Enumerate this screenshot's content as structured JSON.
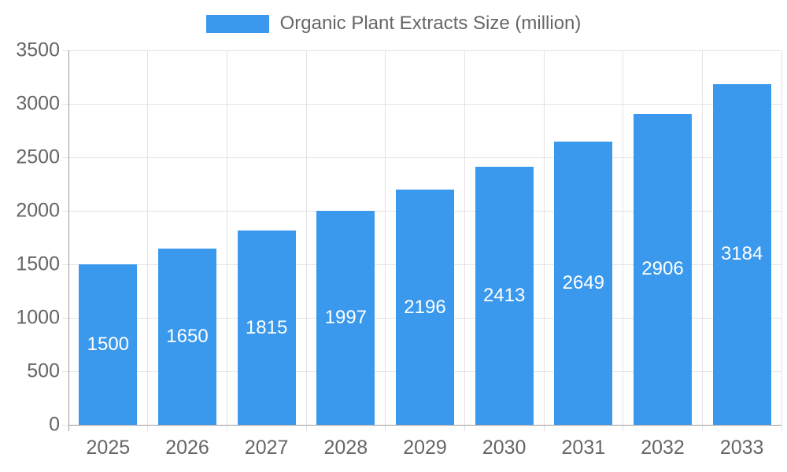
{
  "legend": {
    "label": "Organic Plant Extracts Size (million)"
  },
  "chart_data": {
    "type": "bar",
    "title": "",
    "legend_label": "Organic Plant Extracts Size (million)",
    "series_name": "Organic Plant Extracts Size (million)",
    "categories": [
      "2025",
      "2026",
      "2027",
      "2028",
      "2029",
      "2030",
      "2031",
      "2032",
      "2033"
    ],
    "values": [
      1500,
      1650,
      1815,
      1997,
      2196,
      2413,
      2649,
      2906,
      3184
    ],
    "xlabel": "",
    "ylabel": "",
    "ylim": [
      0,
      3500
    ],
    "ytick_step": 500,
    "yticks": [
      0,
      500,
      1000,
      1500,
      2000,
      2500,
      3000,
      3500
    ],
    "grid": true,
    "legend_position": "top",
    "bar_labels_visible": true,
    "bar_label_position": "center"
  },
  "colors": {
    "bar": "#3A99EC",
    "bar_label": "#FFFFFF",
    "axis_text": "#666666",
    "grid": "#E3E3E3",
    "axis_line": "#9B9B9B",
    "background": "#FFFFFF"
  }
}
